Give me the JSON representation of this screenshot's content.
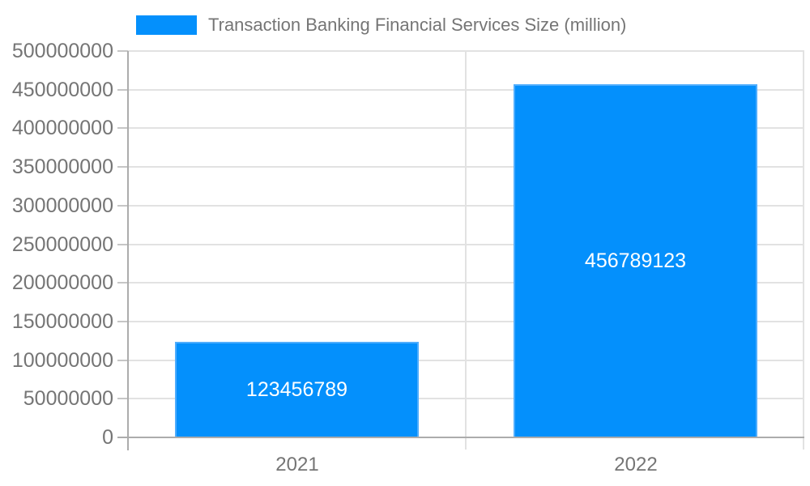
{
  "chart_data": {
    "type": "bar",
    "title": "Transaction Banking Financial Services Size (million)",
    "categories": [
      "2021",
      "2022"
    ],
    "series": [
      {
        "name": "Transaction Banking Financial Services Size (million)",
        "values": [
          123456789,
          456789123
        ]
      }
    ],
    "bar_labels": [
      "123456789",
      "456789123"
    ],
    "yticks": [
      "500000000",
      "450000000",
      "400000000",
      "350000000",
      "300000000",
      "250000000",
      "200000000",
      "150000000",
      "100000000",
      "50000000",
      "0"
    ],
    "ylim": [
      0,
      500000000
    ],
    "ytick_step": 50000000,
    "grid": "horizontal-on",
    "legend_position": "top-center"
  },
  "colors": {
    "bar": "#0490FC",
    "bar_edge": "#4FADFD",
    "grid": "#E2E2E2",
    "axis": "#ACACAC",
    "tick": "#C6C6C6",
    "text": "#757575",
    "bar_label": "#FFFFFF",
    "background": "#FFFFFF"
  }
}
